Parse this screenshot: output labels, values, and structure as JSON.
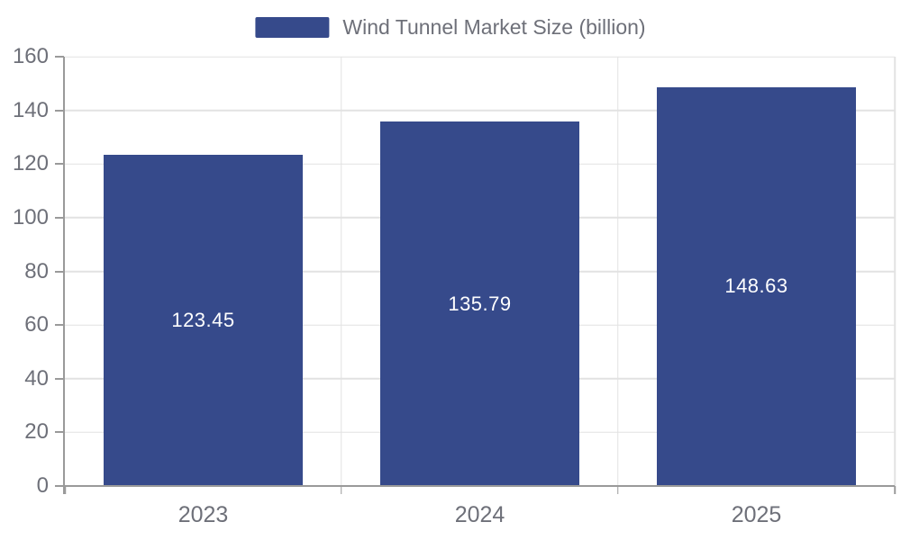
{
  "legend": {
    "label": "Wind Tunnel Market Size (billion)"
  },
  "colors": {
    "bar": "#364a8b",
    "axis_line": "#9a9a9a",
    "grid_line": "#e2e2e2",
    "tick_text": "#6e7079",
    "value_label_text": "#ffffff",
    "background": "#ffffff"
  },
  "chart_data": {
    "type": "bar",
    "title": "Wind Tunnel Market Size (billion)",
    "categories": [
      "2023",
      "2024",
      "2025"
    ],
    "series": [
      {
        "name": "Wind Tunnel Market Size (billion)",
        "values": [
          123.45,
          135.79,
          148.63
        ]
      }
    ],
    "value_labels": [
      "123.45",
      "135.79",
      "148.63"
    ],
    "xlabel": "",
    "ylabel": "",
    "ylim": [
      0,
      160
    ],
    "ytick_step": 20,
    "yticks": [
      0,
      20,
      40,
      60,
      80,
      100,
      120,
      140,
      160
    ],
    "grid": true,
    "legend_position": "top-center",
    "value_label_position": "inside-middle",
    "bar_width_fraction": 0.72
  }
}
